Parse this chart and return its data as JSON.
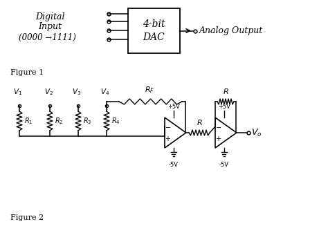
{
  "bg_color": "#ffffff",
  "fig_width": 4.74,
  "fig_height": 3.4,
  "dpi": 100,
  "fig1_label": "Figure 1",
  "fig2_label": "Figure 2",
  "digital_input_line1": "Digital",
  "digital_input_line2": "Input",
  "digital_input_line3": "(0000 →1111)",
  "dac_box_text": "4-bit\nDAC",
  "analog_output_text": "Analog Output",
  "v_labels": [
    "V₁",
    "V₂",
    "V₃",
    "V₄"
  ],
  "r_labels": [
    "R₁",
    "R₂",
    "R₃",
    "R₄"
  ]
}
